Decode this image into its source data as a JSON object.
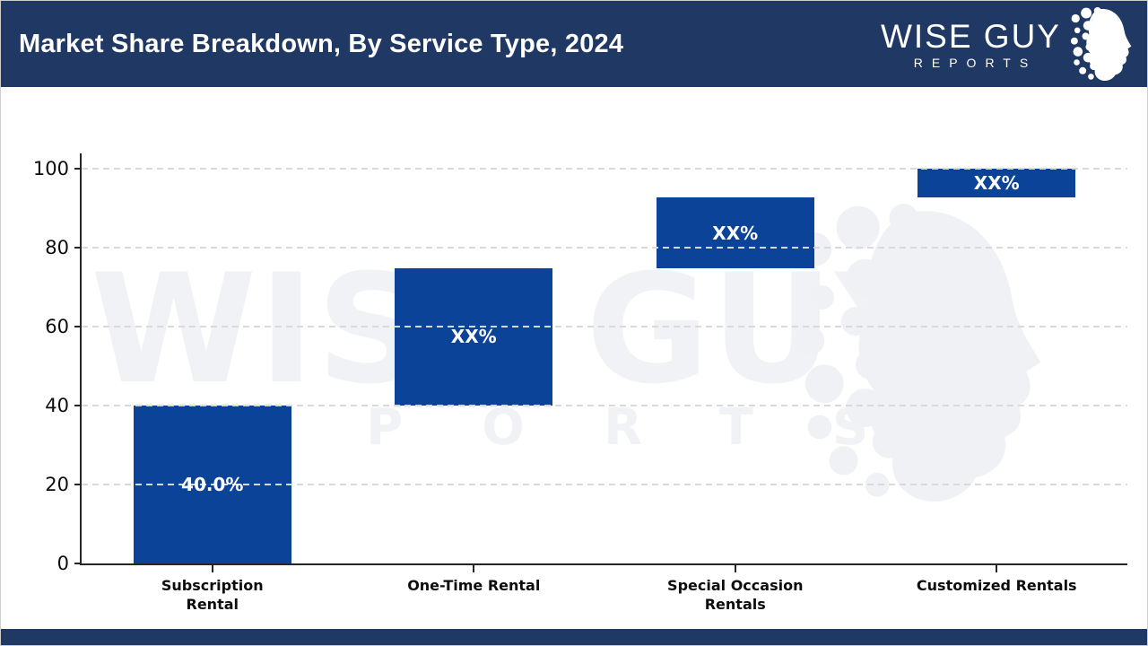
{
  "header": {
    "title": "Market Share Breakdown, By Service Type, 2024",
    "logo": {
      "wordmark": "WISE GUY",
      "subtext": "REPORTS"
    }
  },
  "watermark": {
    "line1": "WISE GUY",
    "line2": "REPORTS"
  },
  "chart_data": {
    "type": "bar",
    "variant": "stacked-waterfall",
    "title": "Market Share Breakdown, By Service Type, 2024",
    "categories": [
      "Subscription Rental",
      "One-Time Rental",
      "Special Occasion Rentals",
      "Customized Rentals"
    ],
    "x_labels_display": [
      "Subscription\nRental",
      "One-Time Rental",
      "Special Occasion\nRentals",
      "Customized Rentals"
    ],
    "segments": [
      {
        "category": "Subscription Rental",
        "start": 0,
        "end": 40.0,
        "value": 40.0,
        "label": "40.0%"
      },
      {
        "category": "One-Time Rental",
        "start": 40.0,
        "end": 74.8,
        "value": 34.8,
        "label": "XX%"
      },
      {
        "category": "Special Occasion Rentals",
        "start": 74.8,
        "end": 92.7,
        "value": 17.9,
        "label": "XX%"
      },
      {
        "category": "Customized Rentals",
        "start": 92.7,
        "end": 100.0,
        "value": 7.3,
        "label": "XX%"
      }
    ],
    "xlabel": "",
    "ylabel": "",
    "yticks": [
      0,
      20,
      40,
      60,
      80,
      100
    ],
    "ylim": [
      0,
      103.9
    ],
    "grid": {
      "axis": "y",
      "style": "dashed",
      "drawn_over_bars": true
    },
    "legend": "none",
    "unit": "percent"
  },
  "colors": {
    "header_bg": "#1f3864",
    "footer_bg": "#1f3864",
    "bar_fill": "#0a4398",
    "bar_label_text": "#ffffff",
    "grid_line": "#d9d9d9",
    "axis_line": "#262626",
    "tick_label_text": "#0d0d0d",
    "watermark": "#f1f2f5",
    "background": "#ffffff"
  }
}
